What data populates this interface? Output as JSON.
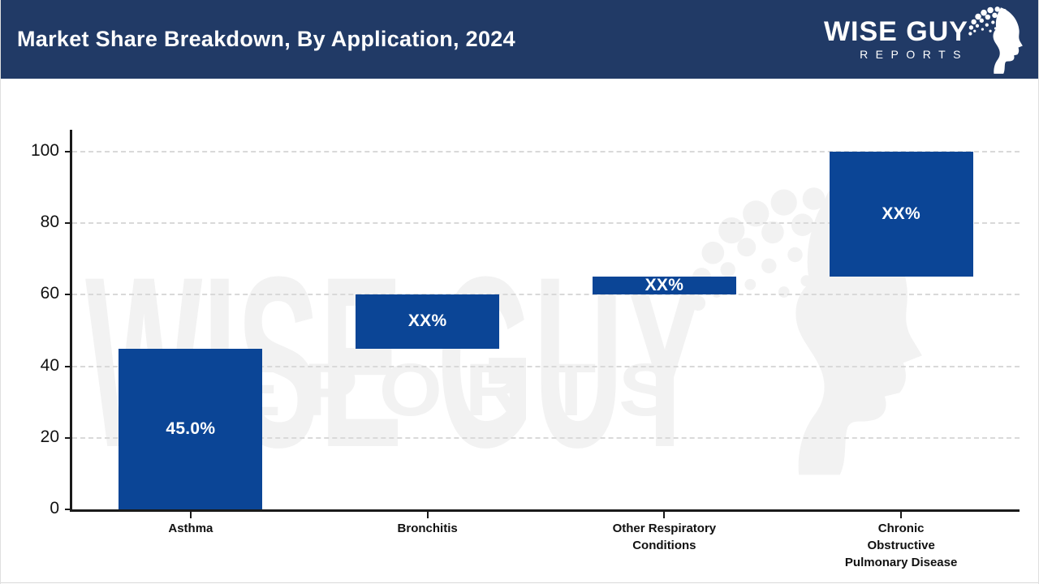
{
  "header": {
    "title": "Market Share Breakdown, By Application, 2024",
    "bg_color": "#213a66",
    "logo": {
      "line1": "WISE GUY",
      "line2": "REPORTS"
    }
  },
  "watermark": {
    "line1": "WISE GUY",
    "line2": "R E P O R T S"
  },
  "chart_data": {
    "type": "bar",
    "subtype": "waterfall",
    "title": "Market Share Breakdown, By Application, 2024",
    "categories": [
      "Asthma",
      "Bronchitis",
      "Other Respiratory Conditions",
      "Chronic Obstructive Pulmonary Disease"
    ],
    "category_label_lines": [
      [
        "Asthma"
      ],
      [
        "Bronchitis"
      ],
      [
        "Other Respiratory",
        "Conditions"
      ],
      [
        "Chronic",
        "Obstructive",
        "Pulmonary Disease"
      ]
    ],
    "series": [
      {
        "name": "Market Share",
        "segments": [
          {
            "category": "Asthma",
            "start": 0,
            "end": 45,
            "label": "45.0%"
          },
          {
            "category": "Bronchitis",
            "start": 45,
            "end": 60,
            "label": "XX%"
          },
          {
            "category": "Other Respiratory Conditions",
            "start": 60,
            "end": 65,
            "label": "XX%"
          },
          {
            "category": "Chronic Obstructive Pulmonary Disease",
            "start": 65,
            "end": 100,
            "label": "XX%"
          }
        ]
      }
    ],
    "xlabel": "",
    "ylabel": "",
    "ylim": [
      0,
      100
    ],
    "yticks": [
      0,
      20,
      40,
      60,
      80,
      100
    ],
    "grid": "dashed-horizontal",
    "legend": "none",
    "bar_color": "#0b4596",
    "bar_label_color": "#ffffff",
    "axis_color": "#1a1a1a",
    "grid_color": "#d9d9d9"
  }
}
